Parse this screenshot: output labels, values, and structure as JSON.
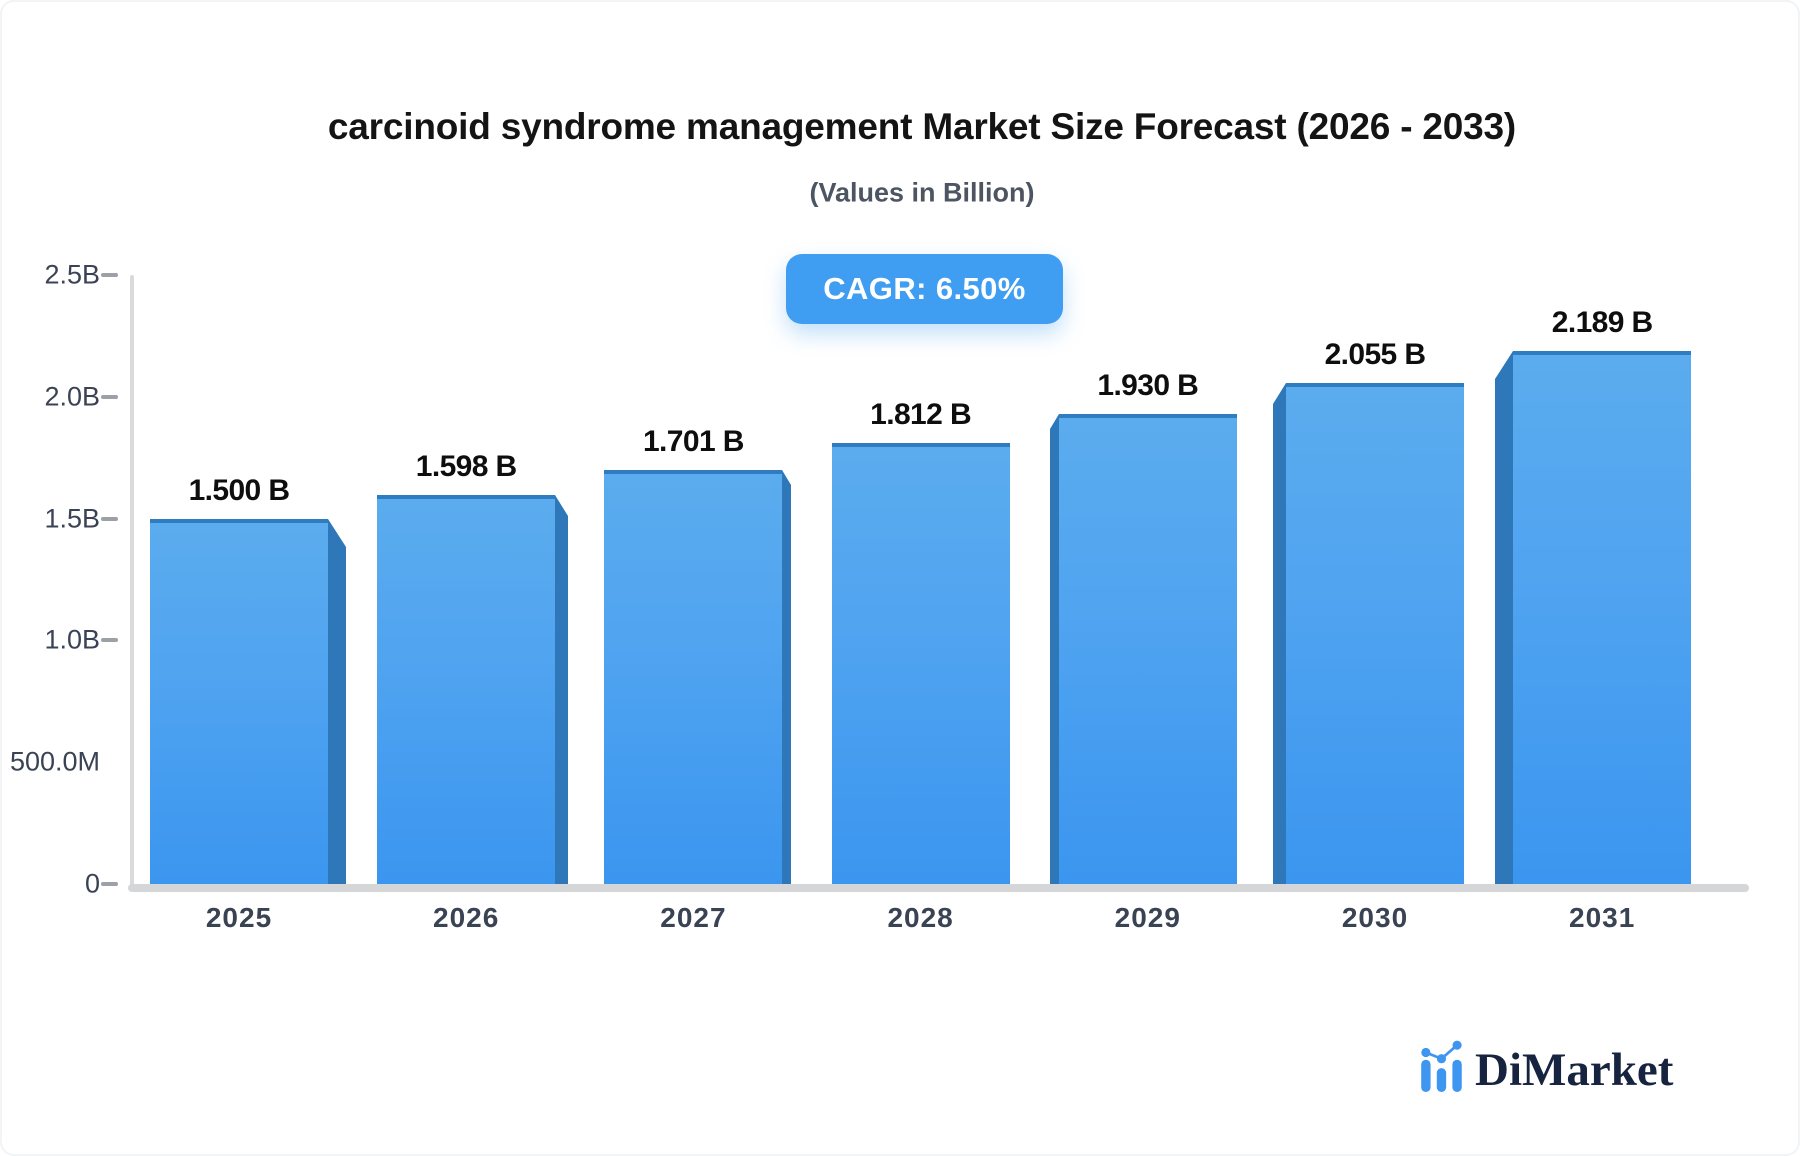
{
  "header": {
    "title": "carcinoid syndrome management Market Size Forecast (2026 - 2033)",
    "subtitle": "(Values in Billion)",
    "cagr_badge": "CAGR: 6.50%"
  },
  "chart_data": {
    "type": "bar",
    "title": "carcinoid syndrome management Market Size Forecast (2026 - 2033)",
    "subtitle": "(Values in Billion)",
    "cagr_text": "CAGR: 6.50%",
    "unit": "Billion",
    "categories": [
      "2025",
      "2026",
      "2027",
      "2028",
      "2029",
      "2030",
      "2031"
    ],
    "values": [
      1.5,
      1.598,
      1.701,
      1.812,
      1.93,
      2.055,
      2.189
    ],
    "value_labels": [
      "1.500 B",
      "1.598 B",
      "1.701 B",
      "1.812 B",
      "1.930 B",
      "2.055 B",
      "2.189 B"
    ],
    "ylim": [
      0,
      2.5
    ],
    "y_ticks": [
      {
        "label": "2.5B",
        "value": 2.5,
        "tick_mark": true
      },
      {
        "label": "2.0B",
        "value": 2.0,
        "tick_mark": true
      },
      {
        "label": "1.5B",
        "value": 1.5,
        "tick_mark": true
      },
      {
        "label": "1.0B",
        "value": 1.0,
        "tick_mark": true
      },
      {
        "label": "500.0M",
        "value": 0.5,
        "tick_mark": false
      },
      {
        "label": "0",
        "value": 0,
        "tick_mark": true
      }
    ],
    "grid": "off",
    "legend": "none"
  },
  "colors": {
    "bar_face_top": "#5BACEE",
    "bar_face_bottom": "#3B96EF",
    "bar_top_edge": "#2F7CC1",
    "bar_side": "#2E78B9",
    "badge_bg": "#3F9EF1",
    "axis_line": "#D9DADC",
    "baseline": "#D5D6D8",
    "tick": "#9CA1A8",
    "title_text": "#141414",
    "subtitle_text": "#4D5562",
    "axis_text": "#3A4354",
    "value_text": "#0E0E0E",
    "logo_blue": "#3E96F0",
    "logo_text_color": "#162440"
  },
  "logo": {
    "text": "DiMarket"
  }
}
